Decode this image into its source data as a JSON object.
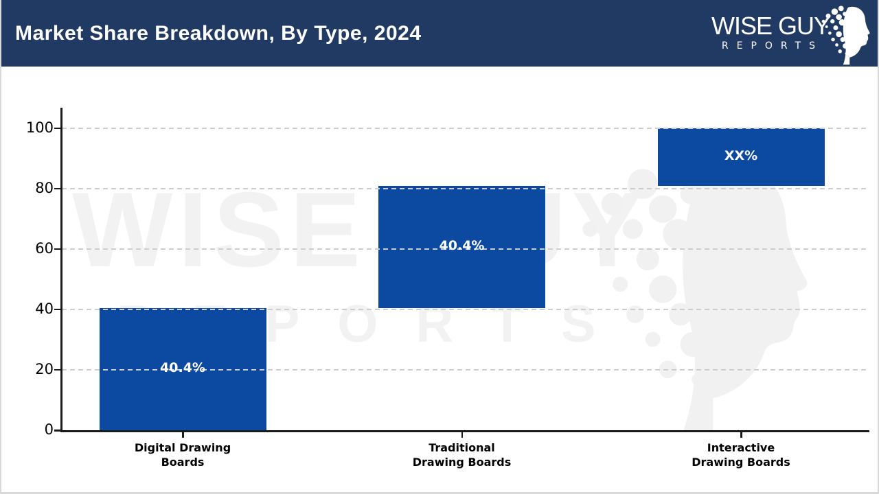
{
  "header": {
    "title": "Market Share Breakdown, By Type, 2024",
    "logo": {
      "line1": "WISE GUY",
      "line2": "REPORTS"
    }
  },
  "watermark": {
    "line1": "WISE GUY",
    "line2": "REPORTS"
  },
  "chart_data": {
    "type": "bar",
    "subtype": "waterfall-stacked",
    "title": "Market Share Breakdown, By Type, 2024",
    "categories": [
      "Digital Drawing Boards",
      "Traditional Drawing Boards",
      "Interactive Drawing Boards"
    ],
    "category_lines": [
      [
        "Digital Drawing",
        "Boards"
      ],
      [
        "Traditional",
        "Drawing Boards"
      ],
      [
        "Interactive",
        "Drawing Boards"
      ]
    ],
    "series": [
      {
        "name": "Market Share (%)",
        "segments": [
          {
            "category": "Digital Drawing Boards",
            "start": 0,
            "end": 40.4,
            "label": "40.4%"
          },
          {
            "category": "Traditional Drawing Boards",
            "start": 40.4,
            "end": 80.8,
            "label": "40.4%"
          },
          {
            "category": "Interactive Drawing Boards",
            "start": 80.8,
            "end": 100,
            "label": "XX%"
          }
        ]
      }
    ],
    "yticks": [
      0,
      20,
      40,
      60,
      80,
      100
    ],
    "ylim": [
      0,
      106
    ],
    "xlabel": "",
    "ylabel": "",
    "grid": true,
    "grid_style": "dashed",
    "grid_over_bars": true,
    "legend": "none",
    "bar_color": "#0c4aa1",
    "bar_label_color": "#ffffff"
  },
  "colors": {
    "header_bg": "#213a63",
    "bar": "#0c4aa1",
    "grid": "#cdcdcd",
    "axis": "#1a1a1a",
    "watermark": "#f2f2f2",
    "page_border": "#d9d9d9"
  }
}
